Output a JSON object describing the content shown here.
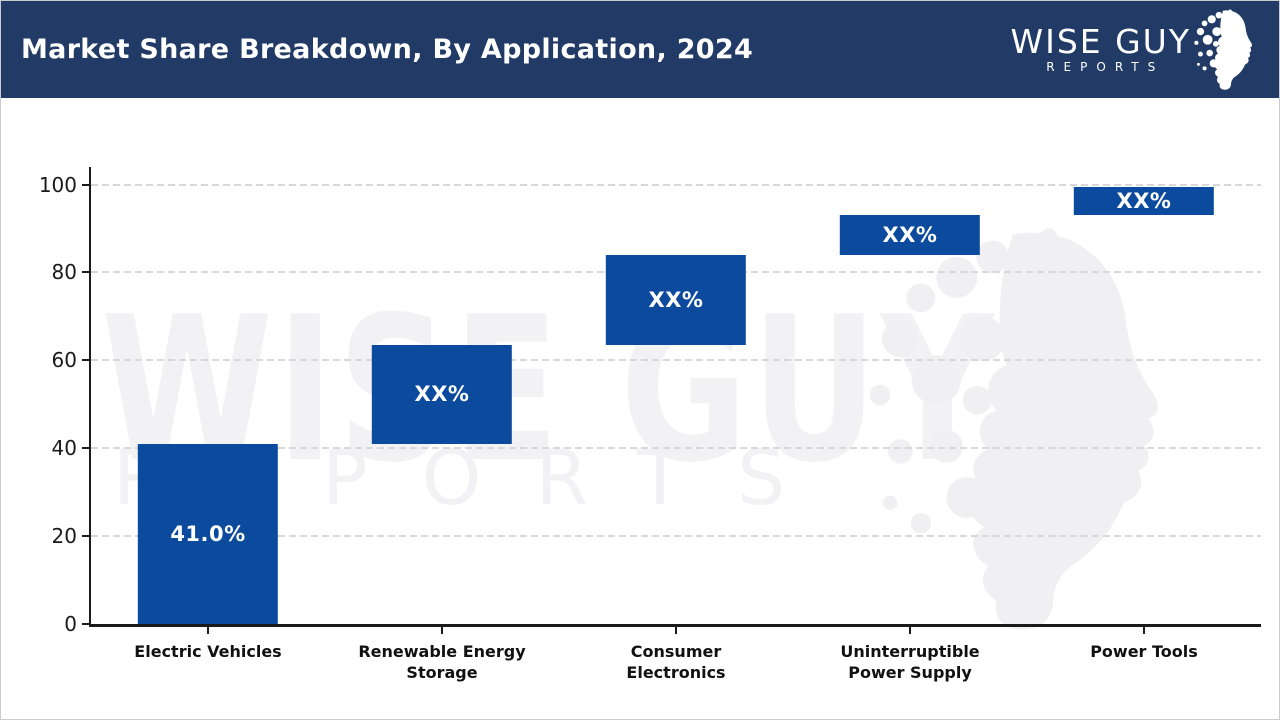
{
  "header": {
    "title": "Market Share Breakdown, By Application, 2024",
    "background_color": "#213a66",
    "logo": {
      "line1": "WISE GUY",
      "line2": "REPORTS"
    }
  },
  "watermark": {
    "line1": "WISE GUY",
    "line2": "REPORTS"
  },
  "chart_data": {
    "type": "bar",
    "subtype": "stepped-waterfall-percent",
    "title": "Market Share Breakdown, By Application, 2024",
    "categories": [
      "Electric Vehicles",
      "Renewable Energy Storage",
      "Consumer Electronics",
      "Uninterruptible Power Supply",
      "Power Tools"
    ],
    "categories_lines": [
      [
        "Electric Vehicles"
      ],
      [
        "Renewable Energy",
        "Storage"
      ],
      [
        "Consumer",
        "Electronics"
      ],
      [
        "Uninterruptible",
        "Power Supply"
      ],
      [
        "Power Tools"
      ]
    ],
    "segments": [
      {
        "category": "Electric Vehicles",
        "start": 0,
        "end": 41.0,
        "label": "41.0%"
      },
      {
        "category": "Renewable Energy Storage",
        "start": 41.0,
        "end": 63.5,
        "label": "XX%"
      },
      {
        "category": "Consumer Electronics",
        "start": 63.5,
        "end": 84.0,
        "label": "XX%"
      },
      {
        "category": "Uninterruptible Power Supply",
        "start": 84.0,
        "end": 93.0,
        "label": "XX%"
      },
      {
        "category": "Power Tools",
        "start": 93.0,
        "end": 99.5,
        "label": "XX%"
      }
    ],
    "yticks": [
      0,
      20,
      40,
      60,
      80,
      100
    ],
    "ylim": [
      0,
      104
    ],
    "xlabel": "",
    "ylabel": "",
    "grid": "dashed-horizontal",
    "legend": "none",
    "bar_color": "#0b4a9c",
    "bar_label_color": "#ffffff",
    "axis_color": "#1a1a1a",
    "grid_color": "#d8d8d8",
    "bar_width_frac": 0.6
  }
}
